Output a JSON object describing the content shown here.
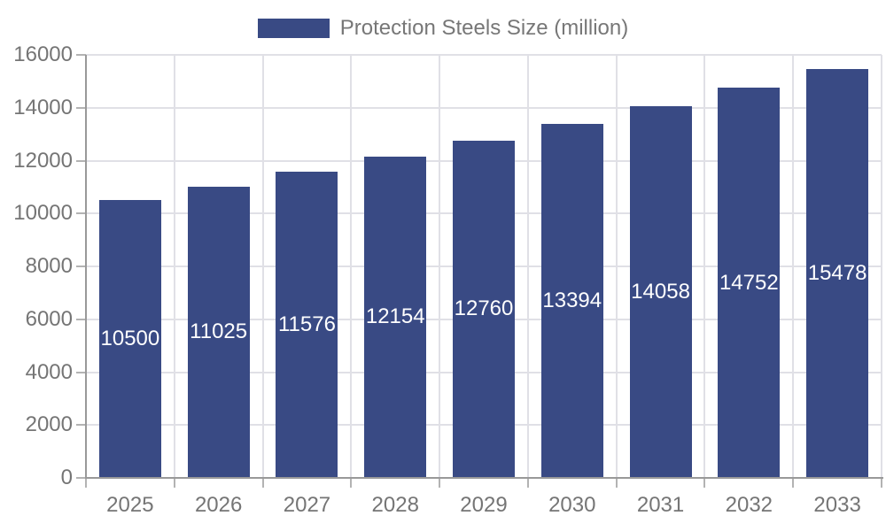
{
  "legend": {
    "position": "top-center",
    "marker": "rect"
  },
  "colors": {
    "bar": "#394A84",
    "legend_text": "#777777",
    "axis_label": "#757575",
    "grid": "#E0E0E6",
    "axis": "#999999",
    "tick": "#B3B3B3",
    "value_label": "#FFFFFF",
    "background": "#FFFFFF"
  },
  "chart_data": {
    "type": "bar",
    "title": "Protection Steels Size (million)",
    "categories": [
      "2025",
      "2026",
      "2027",
      "2028",
      "2029",
      "2030",
      "2031",
      "2032",
      "2033"
    ],
    "values": [
      10500,
      11025,
      11576,
      12154,
      12760,
      13394,
      14058,
      14752,
      15478
    ],
    "xlabel": "",
    "ylabel": "",
    "ylim": [
      0,
      16000
    ],
    "yticks": [
      0,
      2000,
      4000,
      6000,
      8000,
      10000,
      12000,
      14000,
      16000
    ],
    "grid": true,
    "legend_position": "top",
    "value_labels_position": "inside-center"
  }
}
